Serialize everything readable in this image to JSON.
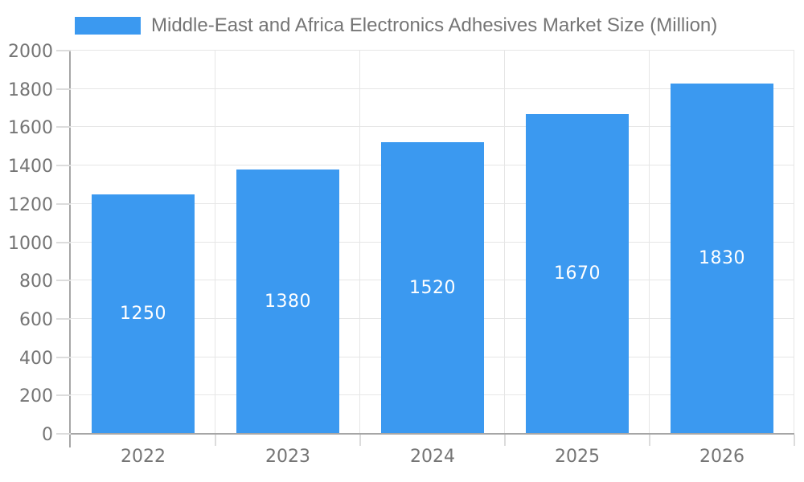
{
  "legend": {
    "label": "Middle-East and Africa Electronics Adhesives Market Size (Million)"
  },
  "colors": {
    "bar": "#3B99F0",
    "label_text": "#757575",
    "value_label_text": "#ffffff",
    "gridline": "#e6e6e6",
    "axis_line": "#a6a6a6",
    "tick": "#dcdcdc",
    "background": "#ffffff"
  },
  "chart_data": {
    "type": "bar",
    "title": "Middle-East and Africa Electronics Adhesives Market Size (Million)",
    "categories": [
      "2022",
      "2023",
      "2024",
      "2025",
      "2026"
    ],
    "values": [
      1250,
      1380,
      1520,
      1670,
      1830
    ],
    "series_name": "Middle-East and Africa Electronics Adhesives Market Size (Million)",
    "xlabel": "",
    "ylabel": "",
    "ylim": [
      0,
      2000
    ],
    "ytick_step": 200,
    "ytick_labels": [
      "0",
      "200",
      "400",
      "600",
      "800",
      "1000",
      "1200",
      "1400",
      "1600",
      "1800",
      "2000"
    ],
    "grid": true,
    "legend_position": "top-left",
    "value_label_position": "inside-center"
  }
}
